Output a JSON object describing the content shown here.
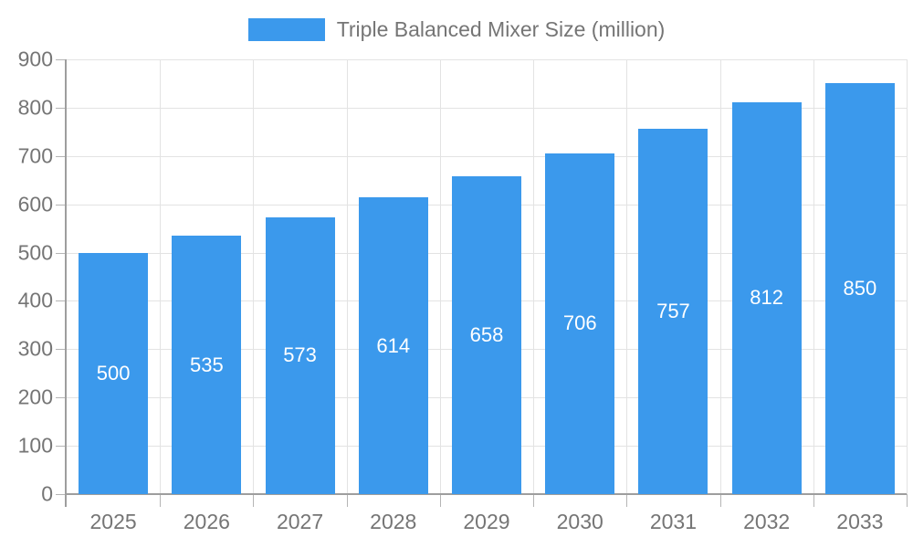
{
  "chart_data": {
    "type": "bar",
    "title": "Triple Balanced Mixer Size (million)",
    "legend_label": "Triple Balanced Mixer Size (million)",
    "legend_position": "top-center",
    "categories": [
      "2025",
      "2026",
      "2027",
      "2028",
      "2029",
      "2030",
      "2031",
      "2032",
      "2033"
    ],
    "values": [
      500,
      535,
      573,
      614,
      658,
      706,
      757,
      812,
      850
    ],
    "xlabel": "",
    "ylabel": "",
    "ylim": [
      0,
      900
    ],
    "ytick_step": 100,
    "grid": true,
    "value_labels_inside_bars": true,
    "colors": {
      "bar": "#3b99ec",
      "bar_label": "#ffffff",
      "axis_text": "#757575",
      "axis_line": "#9e9e9e",
      "tick": "#b5b5b5",
      "gridline": "#e3e3e3",
      "background": "#ffffff"
    }
  }
}
